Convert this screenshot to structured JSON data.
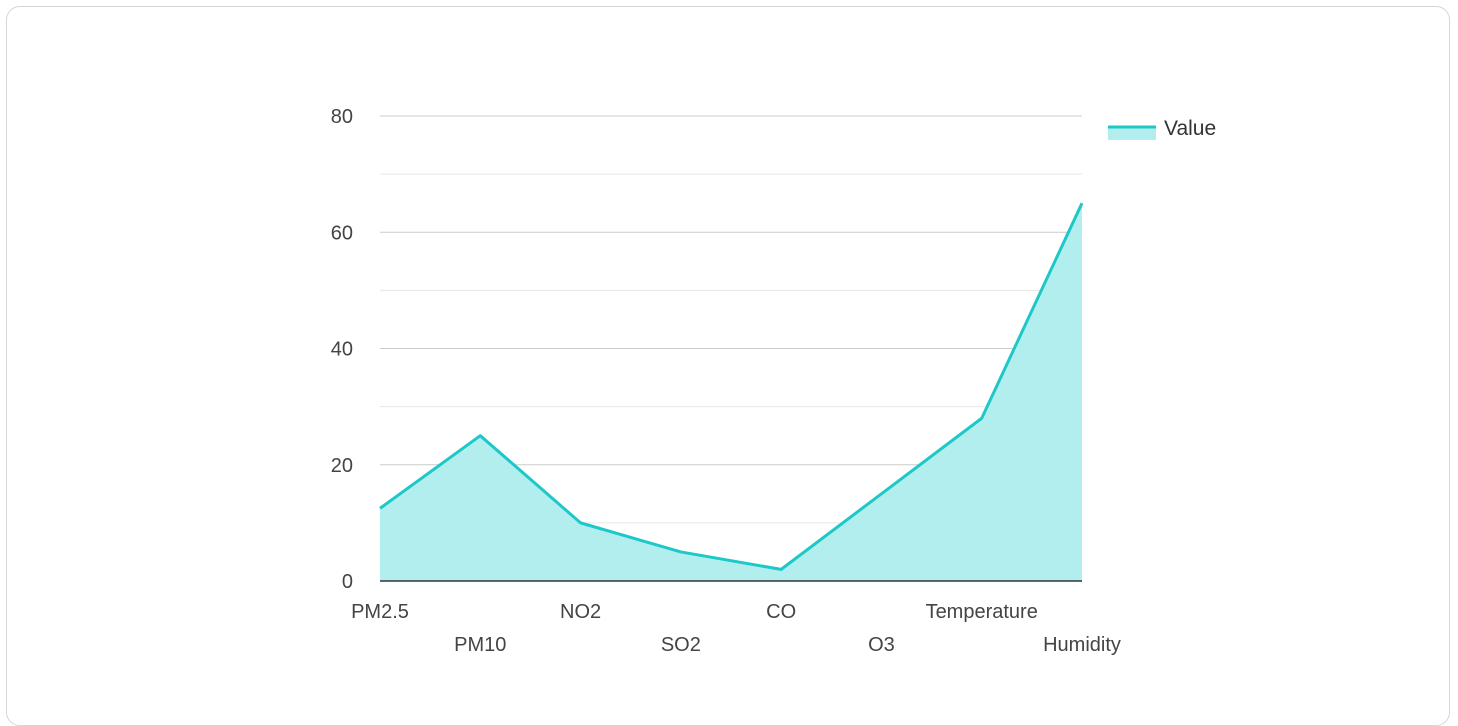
{
  "chart_data": {
    "type": "area",
    "categories": [
      "PM2.5",
      "PM10",
      "NO2",
      "SO2",
      "CO",
      "O3",
      "Temperature",
      "Humidity"
    ],
    "series": [
      {
        "name": "Value",
        "values": [
          12.5,
          25,
          10,
          5,
          2,
          15,
          28,
          65
        ]
      }
    ],
    "ylim": [
      0,
      80
    ],
    "yticks": [
      0,
      20,
      40,
      60,
      80
    ],
    "grid": true,
    "legend_position": "top-right",
    "colors": {
      "line": "#1ec8c8",
      "fill": "#b2eeee",
      "grid": "#cccccc",
      "axis": "#333333"
    }
  }
}
